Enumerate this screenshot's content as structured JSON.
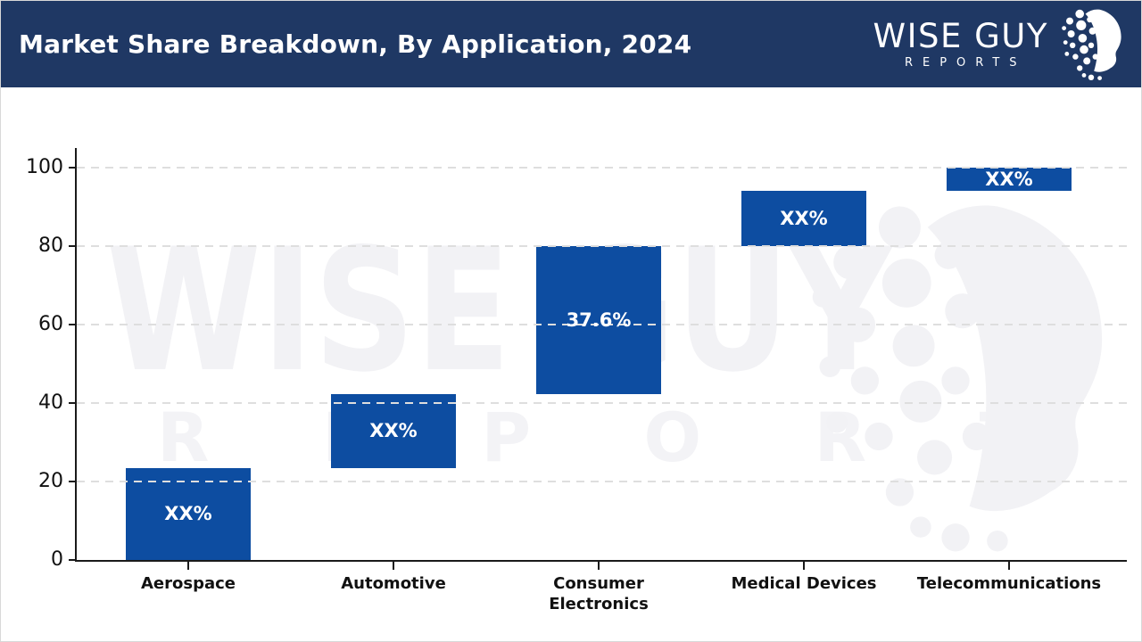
{
  "header": {
    "title": "Market Share Breakdown, By Application, 2024",
    "logo_line1": "WISE GUY",
    "logo_line2": "REPORTS",
    "bg_color": "#1f3864"
  },
  "watermark": {
    "line1": "WISE GUY",
    "line2": "R E P O R T S"
  },
  "chart_data": {
    "type": "bar",
    "subtype": "waterfall",
    "title": "Market Share Breakdown, By Application, 2024",
    "categories": [
      "Aerospace",
      "Automotive",
      "Consumer Electronics",
      "Medical Devices",
      "Telecommunications"
    ],
    "category_lines": [
      [
        "Aerospace"
      ],
      [
        "Automotive"
      ],
      [
        "Consumer",
        "Electronics"
      ],
      [
        "Medical Devices"
      ],
      [
        "Telecommunications"
      ]
    ],
    "segments": [
      {
        "category": "Aerospace",
        "start": 0,
        "end": 23.5,
        "value": 23.5,
        "label": "XX%"
      },
      {
        "category": "Automotive",
        "start": 23.5,
        "end": 42.3,
        "value": 18.8,
        "label": "XX%"
      },
      {
        "category": "Consumer Electronics",
        "start": 42.3,
        "end": 79.9,
        "value": 37.6,
        "label": "37.6%"
      },
      {
        "category": "Medical Devices",
        "start": 79.9,
        "end": 94.1,
        "value": 14.2,
        "label": "XX%"
      },
      {
        "category": "Telecommunications",
        "start": 94.1,
        "end": 100.0,
        "value": 5.9,
        "label": "XX%"
      }
    ],
    "values_note": "Only Consumer Electronics shows a numeric label (37.6%); other bars are masked as XX%. Segment extents estimated from gridlines.",
    "yticks": [
      0,
      20,
      40,
      60,
      80,
      100
    ],
    "ylim": [
      0,
      105
    ],
    "xlabel": "",
    "ylabel": "",
    "grid": "dashed horizontal gridlines drawn over bars",
    "legend": "none",
    "bar_color": "#0d4da1",
    "bar_label_color": "#ffffff",
    "axis_color": "#1a1a1a",
    "grid_color": "#dedede"
  }
}
